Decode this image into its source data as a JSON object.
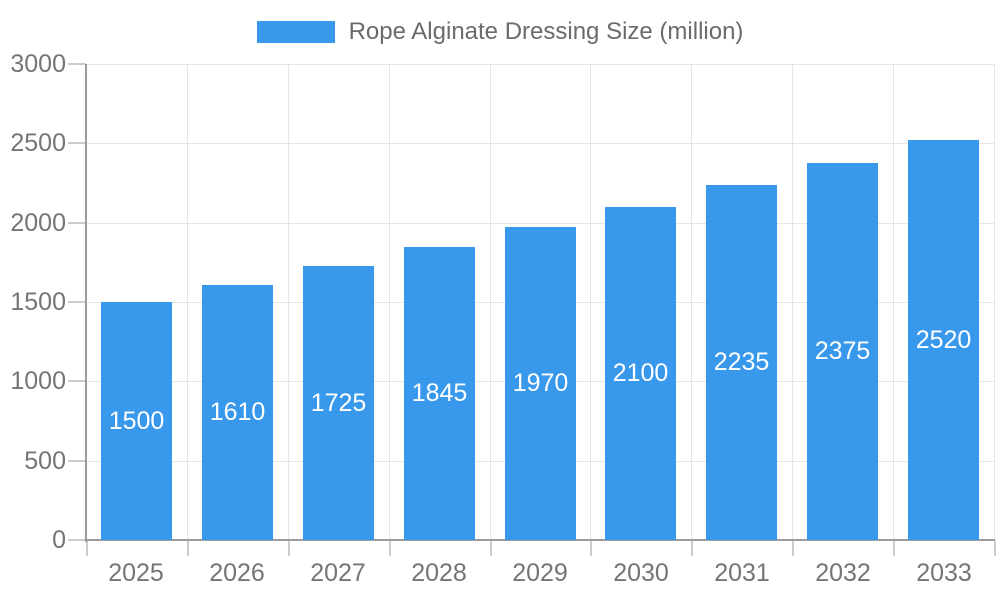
{
  "chart_data": {
    "type": "bar",
    "title": "",
    "series_name": "Rope Alginate Dressing Size (million)",
    "categories": [
      "2025",
      "2026",
      "2027",
      "2028",
      "2029",
      "2030",
      "2031",
      "2032",
      "2033"
    ],
    "values": [
      1500,
      1610,
      1725,
      1845,
      1970,
      2100,
      2235,
      2375,
      2520
    ],
    "xlabel": "",
    "ylabel": "",
    "ylim": [
      0,
      3000
    ],
    "yticks": [
      0,
      500,
      1000,
      1500,
      2000,
      2500,
      3000
    ],
    "grid": true,
    "legend_position": "top",
    "value_labels": "inside-center",
    "colors": {
      "bar": "#3898EC",
      "bar_value_label": "#FFFFFF",
      "axis_text": "#757575",
      "legend_text": "#6B6B6B",
      "gridline": "#E6E6E6",
      "tick": "#CCCCCC",
      "axis_line": "#9A9A9A",
      "background": "#FFFFFF"
    }
  }
}
